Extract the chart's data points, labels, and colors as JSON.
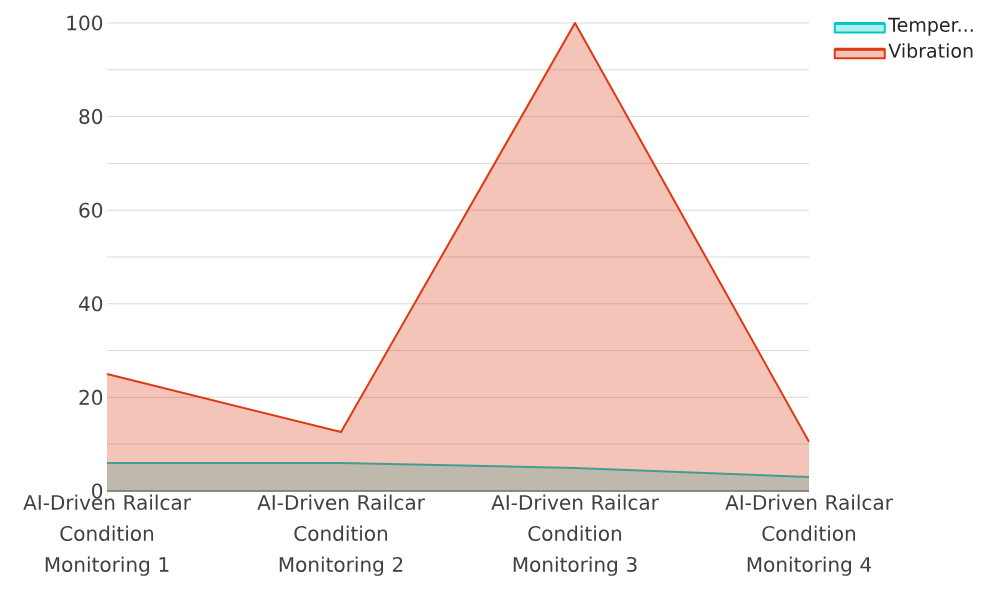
{
  "chart_data": {
    "type": "area",
    "categories": [
      "AI-Driven Railcar Condition Monitoring 1",
      "AI-Driven Railcar Condition Monitoring 2",
      "AI-Driven Railcar Condition Monitoring 3",
      "AI-Driven Railcar Condition Monitoring 4"
    ],
    "series": [
      {
        "name": "Temper...",
        "color": "#00c8c8",
        "values": [
          6,
          6,
          4.9,
          3
        ]
      },
      {
        "name": "Vibration",
        "color": "#dd3a14",
        "values": [
          25,
          12.6,
          100,
          10.5
        ]
      }
    ],
    "ylim": [
      0,
      100
    ],
    "yticks": [
      0,
      {
        "value": 10,
        "label": null
      },
      20,
      {
        "value": 30,
        "label": null
      },
      40,
      {
        "value": 50,
        "label": null
      },
      60,
      {
        "value": 70,
        "label": null
      },
      80,
      {
        "value": 90,
        "label": null
      },
      100
    ],
    "grid": "y",
    "legend": "top right"
  }
}
